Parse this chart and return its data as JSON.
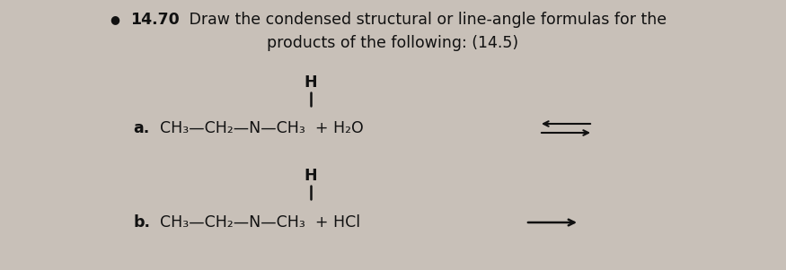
{
  "background_color": "#c8c0b8",
  "title_bullet": "●",
  "title_number": "14.70",
  "title_line1": " Draw the condensed structural or line-angle formulas for the",
  "title_line2": "products of the following: (14.5)",
  "label_a": "a.",
  "label_b": "b.",
  "formula_a": "CH₃—CH₂—N—CH₃  + H₂O",
  "formula_b": "CH₃—CH₂—N—CH₃  + HCl",
  "H_label": "H",
  "text_color": "#111111",
  "font_size_title": 12.5,
  "font_size_formula": 12.5
}
